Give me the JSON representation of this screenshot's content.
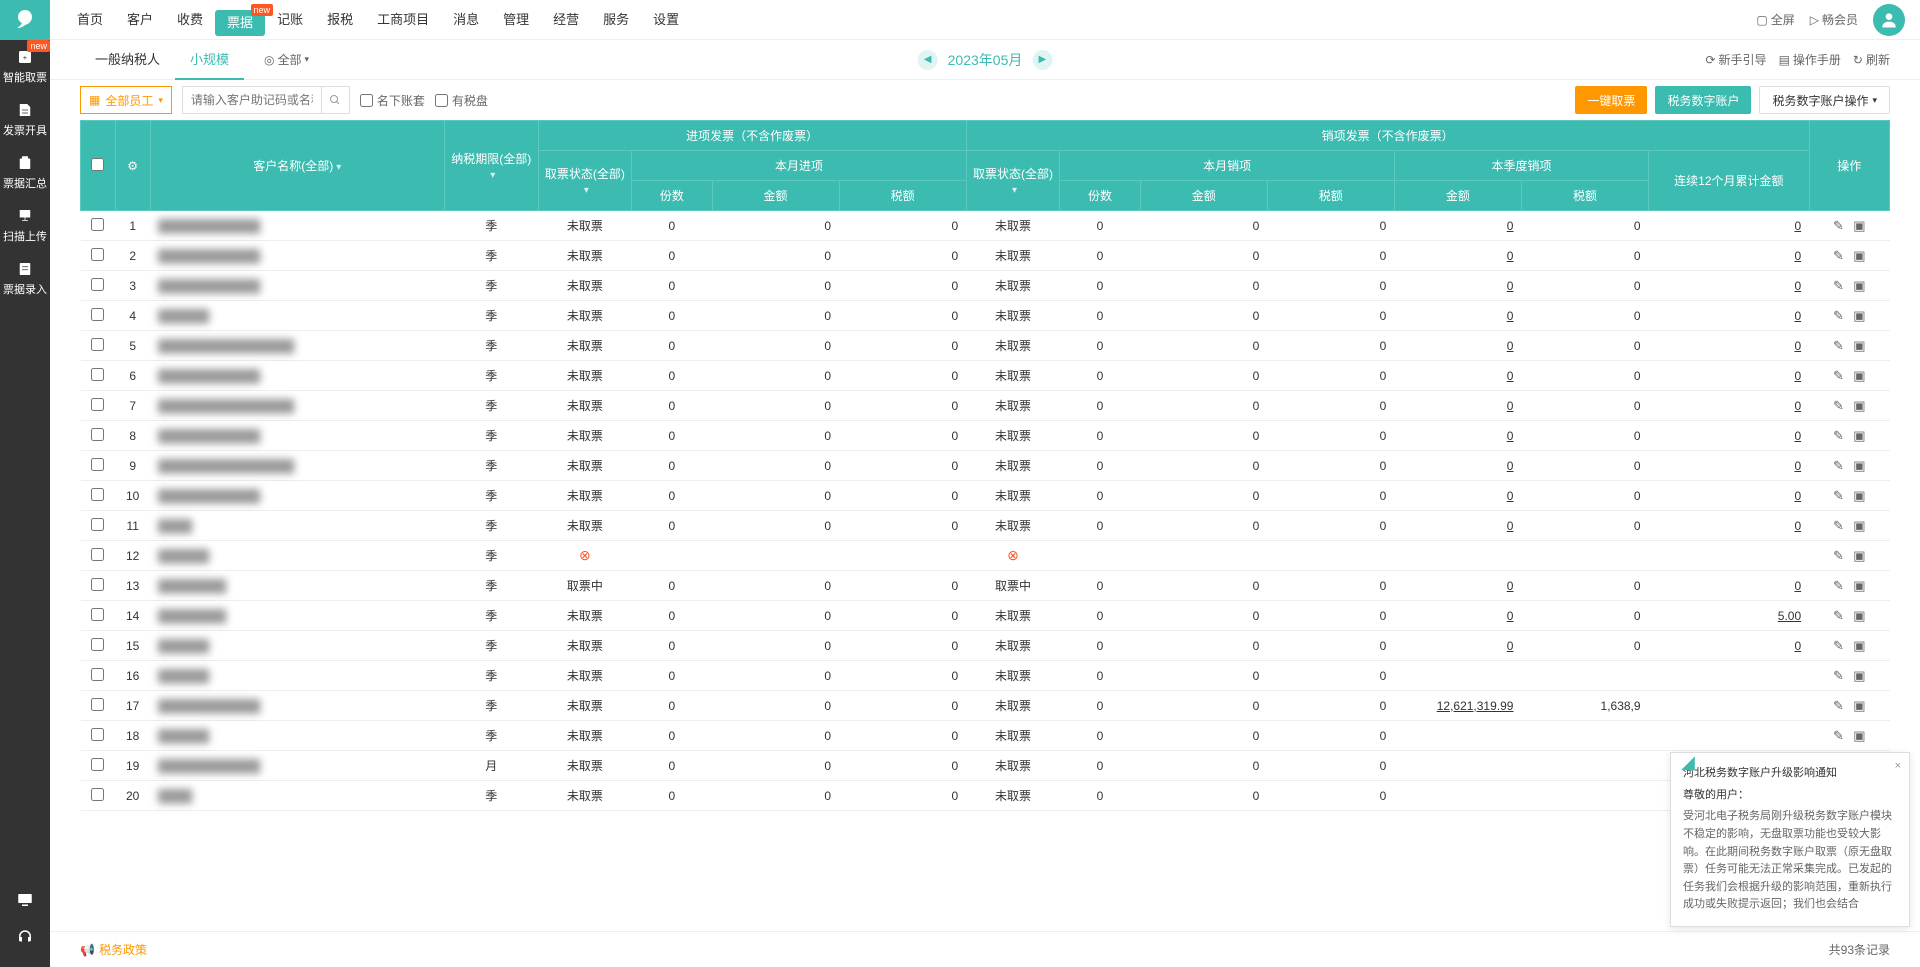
{
  "sidebar": {
    "items": [
      {
        "label": "智能取票",
        "badge": "new"
      },
      {
        "label": "发票开具"
      },
      {
        "label": "票据汇总"
      },
      {
        "label": "扫描上传"
      },
      {
        "label": "票据录入"
      }
    ]
  },
  "topnav": {
    "items": [
      "首页",
      "客户",
      "收费",
      "票据",
      "记账",
      "报税",
      "工商项目",
      "消息",
      "管理",
      "经营",
      "服务",
      "设置"
    ],
    "active_index": 3,
    "badge_on": 3,
    "badge_text": "new",
    "right": {
      "fullscreen": "全屏",
      "member": "畅会员"
    }
  },
  "subheader": {
    "tabs": [
      {
        "label": "一般纳税人"
      },
      {
        "label": "小规模"
      }
    ],
    "active_tab": 1,
    "region": "全部",
    "date": "2023年05月",
    "right": {
      "guide": "新手引导",
      "manual": "操作手册",
      "refresh": "刷新"
    }
  },
  "toolbar": {
    "employee_filter": "全部员工",
    "search_placeholder": "请输入客户助记码或名称",
    "cb1": "名下账套",
    "cb2": "有税盘",
    "btn1": "一键取票",
    "btn2": "税务数字账户",
    "btn3": "税务数字账户操作"
  },
  "table": {
    "headers": {
      "customer": "客户名称(全部)",
      "tax_period": "纳税期限(全部)",
      "in_invoice": "进项发票（不含作废票）",
      "out_invoice": "销项发票（不含作废票）",
      "fetch_status": "取票状态(全部)",
      "this_month_in": "本月进项",
      "this_month_out": "本月销项",
      "this_quarter_out": "本季度销项",
      "twelve_month": "连续12个月累计金额",
      "count": "份数",
      "amount": "金额",
      "tax": "税额",
      "action": "操作"
    },
    "rows": [
      {
        "n": 1,
        "name": "████████████",
        "period": "季",
        "s1": "未取票",
        "c1": 0,
        "a1": 0,
        "t1": 0,
        "s2": "未取票",
        "c2": 0,
        "a2": 0,
        "t2": 0,
        "qa": "0",
        "qt": 0,
        "y": "0"
      },
      {
        "n": 2,
        "name": "████████████",
        "period": "季",
        "s1": "未取票",
        "c1": 0,
        "a1": 0,
        "t1": 0,
        "s2": "未取票",
        "c2": 0,
        "a2": 0,
        "t2": 0,
        "qa": "0",
        "qt": 0,
        "y": "0"
      },
      {
        "n": 3,
        "name": "████████████",
        "period": "季",
        "s1": "未取票",
        "c1": 0,
        "a1": 0,
        "t1": 0,
        "s2": "未取票",
        "c2": 0,
        "a2": 0,
        "t2": 0,
        "qa": "0",
        "qt": 0,
        "y": "0"
      },
      {
        "n": 4,
        "name": "██████",
        "period": "季",
        "s1": "未取票",
        "c1": 0,
        "a1": 0,
        "t1": 0,
        "s2": "未取票",
        "c2": 0,
        "a2": 0,
        "t2": 0,
        "qa": "0",
        "qt": 0,
        "y": "0"
      },
      {
        "n": 5,
        "name": "████████████████",
        "period": "季",
        "s1": "未取票",
        "c1": 0,
        "a1": 0,
        "t1": 0,
        "s2": "未取票",
        "c2": 0,
        "a2": 0,
        "t2": 0,
        "qa": "0",
        "qt": 0,
        "y": "0"
      },
      {
        "n": 6,
        "name": "████████████",
        "period": "季",
        "s1": "未取票",
        "c1": 0,
        "a1": 0,
        "t1": 0,
        "s2": "未取票",
        "c2": 0,
        "a2": 0,
        "t2": 0,
        "qa": "0",
        "qt": 0,
        "y": "0"
      },
      {
        "n": 7,
        "name": "████████████████",
        "period": "季",
        "s1": "未取票",
        "c1": 0,
        "a1": 0,
        "t1": 0,
        "s2": "未取票",
        "c2": 0,
        "a2": 0,
        "t2": 0,
        "qa": "0",
        "qt": 0,
        "y": "0"
      },
      {
        "n": 8,
        "name": "████████████",
        "period": "季",
        "s1": "未取票",
        "c1": 0,
        "a1": 0,
        "t1": 0,
        "s2": "未取票",
        "c2": 0,
        "a2": 0,
        "t2": 0,
        "qa": "0",
        "qt": 0,
        "y": "0"
      },
      {
        "n": 9,
        "name": "████████████████",
        "period": "季",
        "s1": "未取票",
        "c1": 0,
        "a1": 0,
        "t1": 0,
        "s2": "未取票",
        "c2": 0,
        "a2": 0,
        "t2": 0,
        "qa": "0",
        "qt": 0,
        "y": "0"
      },
      {
        "n": 10,
        "name": "████████████",
        "period": "季",
        "s1": "未取票",
        "c1": 0,
        "a1": 0,
        "t1": 0,
        "s2": "未取票",
        "c2": 0,
        "a2": 0,
        "t2": 0,
        "qa": "0",
        "qt": 0,
        "y": "0"
      },
      {
        "n": 11,
        "name": "████",
        "period": "季",
        "s1": "未取票",
        "c1": 0,
        "a1": 0,
        "t1": 0,
        "s2": "未取票",
        "c2": 0,
        "a2": 0,
        "t2": 0,
        "qa": "0",
        "qt": 0,
        "y": "0"
      },
      {
        "n": 12,
        "name": "██████",
        "period": "季",
        "s1": "⊗",
        "c1": "",
        "a1": "",
        "t1": "",
        "s2": "⊗",
        "c2": "",
        "a2": "",
        "t2": "",
        "qa": "",
        "qt": "",
        "y": "",
        "error": true
      },
      {
        "n": 13,
        "name": "████████",
        "period": "季",
        "s1": "取票中",
        "c1": 0,
        "a1": 0,
        "t1": 0,
        "s2": "取票中",
        "c2": 0,
        "a2": 0,
        "t2": 0,
        "qa": "0",
        "qt": 0,
        "y": "0"
      },
      {
        "n": 14,
        "name": "████████",
        "period": "季",
        "s1": "未取票",
        "c1": 0,
        "a1": 0,
        "t1": 0,
        "s2": "未取票",
        "c2": 0,
        "a2": 0,
        "t2": 0,
        "qa": "0",
        "qt": 0,
        "y": "5.00"
      },
      {
        "n": 15,
        "name": "██████",
        "period": "季",
        "s1": "未取票",
        "c1": 0,
        "a1": 0,
        "t1": 0,
        "s2": "未取票",
        "c2": 0,
        "a2": 0,
        "t2": 0,
        "qa": "0",
        "qt": 0,
        "y": "0"
      },
      {
        "n": 16,
        "name": "██████",
        "period": "季",
        "s1": "未取票",
        "c1": 0,
        "a1": 0,
        "t1": 0,
        "s2": "未取票",
        "c2": 0,
        "a2": 0,
        "t2": 0,
        "qa": "",
        "qt": "",
        "y": ""
      },
      {
        "n": 17,
        "name": "████████████",
        "period": "季",
        "s1": "未取票",
        "c1": 0,
        "a1": 0,
        "t1": 0,
        "s2": "未取票",
        "c2": 0,
        "a2": 0,
        "t2": 0,
        "qa": "12,621,319.99",
        "qt": "1,638,9",
        "y": ""
      },
      {
        "n": 18,
        "name": "██████",
        "period": "季",
        "s1": "未取票",
        "c1": 0,
        "a1": 0,
        "t1": 0,
        "s2": "未取票",
        "c2": 0,
        "a2": 0,
        "t2": 0,
        "qa": "",
        "qt": "",
        "y": ""
      },
      {
        "n": 19,
        "name": "████████████",
        "period": "月",
        "s1": "未取票",
        "c1": 0,
        "a1": 0,
        "t1": 0,
        "s2": "未取票",
        "c2": 0,
        "a2": 0,
        "t2": 0,
        "qa": "",
        "qt": "",
        "y": ""
      },
      {
        "n": 20,
        "name": "████",
        "period": "季",
        "s1": "未取票",
        "c1": 0,
        "a1": 0,
        "t1": 0,
        "s2": "未取票",
        "c2": 0,
        "a2": 0,
        "t2": 0,
        "qa": "",
        "qt": "",
        "y": ""
      }
    ]
  },
  "footer": {
    "policy": "税务政策",
    "total": "共93条记录"
  },
  "notification": {
    "title": "河北税务数字账户升级影响通知",
    "greeting": "尊敬的用户：",
    "body": "受河北电子税务局刚升级税务数字账户模块不稳定的影响，无盘取票功能也受较大影响。在此期间税务数字账户取票（原无盘取票）任务可能无法正常采集完成。已发起的任务我们会根据升级的影响范围，重新执行成功或失败提示返回；我们也会结合"
  }
}
